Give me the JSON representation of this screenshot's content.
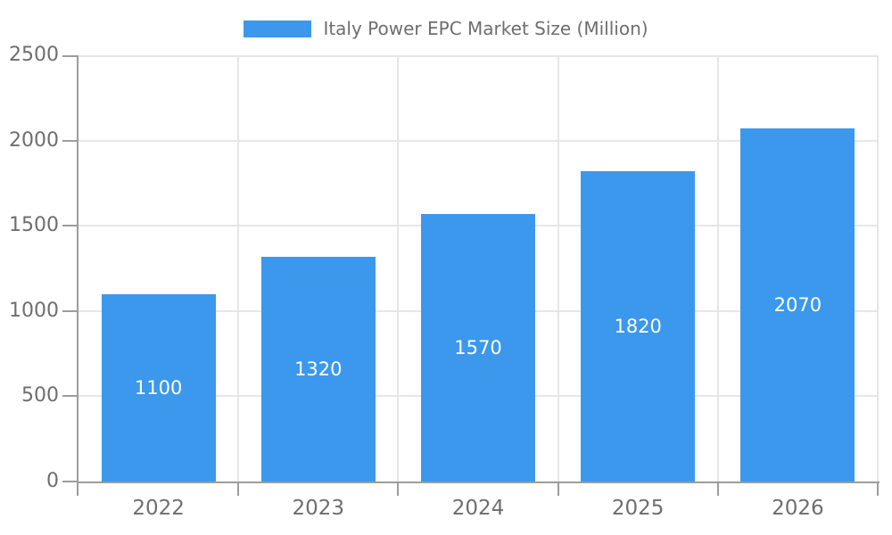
{
  "legend": {
    "label": "Italy Power EPC Market Size (Million)"
  },
  "chart_data": {
    "type": "bar",
    "title": "Italy Power EPC Market Size (Million)",
    "series_name": "Italy Power EPC Market Size (Million)",
    "categories": [
      "2022",
      "2023",
      "2024",
      "2025",
      "2026"
    ],
    "values": [
      1100,
      1320,
      1570,
      1820,
      2070
    ],
    "bar_labels": [
      "1100",
      "1320",
      "1570",
      "1820",
      "2070"
    ],
    "xlabel": "",
    "ylabel": "",
    "ylim": [
      0,
      2500
    ],
    "yticks": [
      0,
      500,
      1000,
      1500,
      2000,
      2500
    ],
    "ytick_labels": [
      "0",
      "500",
      "1000",
      "1500",
      "2000",
      "2500"
    ],
    "grid": true,
    "legend_position": "top-center",
    "colors": {
      "bar": "#3b98ec",
      "bar_label": "#ffffff",
      "axis_text": "#6e6e6e",
      "grid_line": "#e6e6e6",
      "axis_line": "#9c9c9c",
      "background": "#ffffff"
    }
  }
}
